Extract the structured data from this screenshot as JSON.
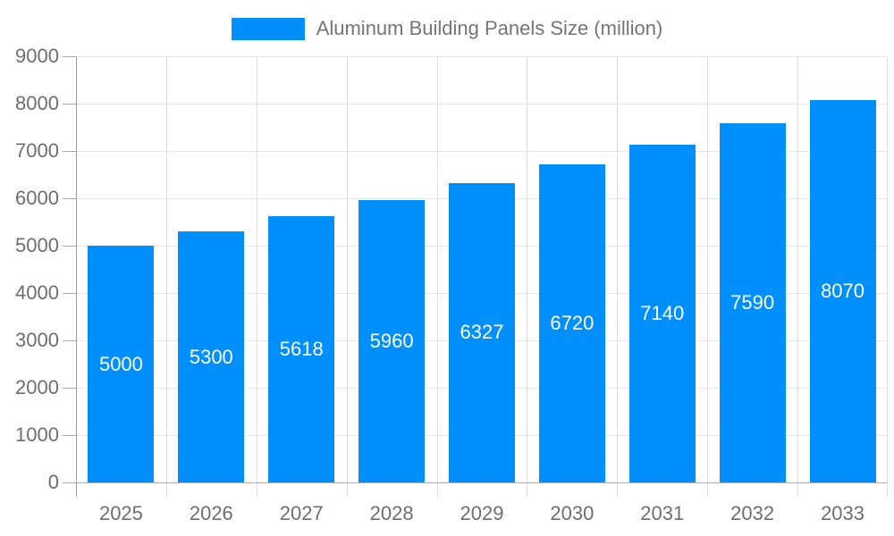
{
  "legend": {
    "label": "Aluminum Building Panels Size (million)"
  },
  "chart_data": {
    "type": "bar",
    "title": "Aluminum Building Panels Size (million)",
    "categories": [
      "2025",
      "2026",
      "2027",
      "2028",
      "2029",
      "2030",
      "2031",
      "2032",
      "2033"
    ],
    "series": [
      {
        "name": "Aluminum Building Panels Size (million)",
        "values": [
          5000,
          5300,
          5618,
          5960,
          6327,
          6720,
          7140,
          7590,
          8070
        ]
      }
    ],
    "value_labels": [
      "5000",
      "5300",
      "5618",
      "5960",
      "6327",
      "6720",
      "7140",
      "7590",
      "8070"
    ],
    "xlabel": "",
    "ylabel": "",
    "ylim": [
      0,
      9000
    ],
    "ytick_step": 1000,
    "ytick_labels": [
      "0",
      "1000",
      "2000",
      "3000",
      "4000",
      "5000",
      "6000",
      "7000",
      "8000",
      "9000"
    ],
    "grid": true,
    "legend_position": "top",
    "colors": {
      "bar": "#008FFB",
      "value_label": "#FFFFFF",
      "axis_label": "#6E6E6E",
      "legend_text": "#757575",
      "gridline": "#E6E6E6",
      "axis_line": "#9E9E9E"
    }
  }
}
